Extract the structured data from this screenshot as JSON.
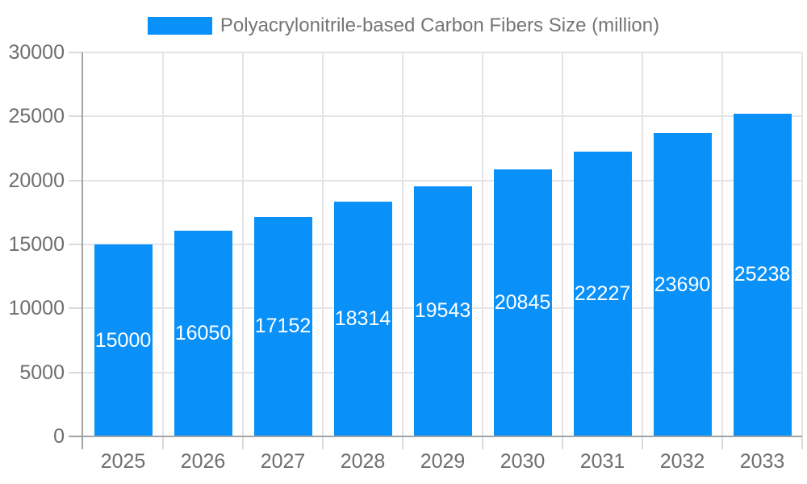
{
  "legend": {
    "label": "Polyacrylonitrile-based Carbon Fibers Size (million)"
  },
  "colors": {
    "background": "#ffffff",
    "bar": "#0990f9",
    "bar_label_text": "#ffffff",
    "axis_line": "#a3a3a3",
    "grid_line": "#e4e4e4",
    "tick_line": "#dadada",
    "tick_text": "#6e6e6e",
    "legend_text": "#757575"
  },
  "chart_data": {
    "type": "bar",
    "title": "",
    "xlabel": "",
    "ylabel": "",
    "categories": [
      "2025",
      "2026",
      "2027",
      "2028",
      "2029",
      "2030",
      "2031",
      "2032",
      "2033"
    ],
    "series": [
      {
        "name": "Polyacrylonitrile-based Carbon Fibers Size (million)",
        "values": [
          15000,
          16050,
          17152,
          18314,
          19543,
          20845,
          22227,
          23690,
          25238
        ]
      }
    ],
    "ylim": [
      0,
      30000
    ],
    "yticks": [
      0,
      5000,
      10000,
      15000,
      20000,
      25000,
      30000
    ],
    "grid": true,
    "legend_position": "top",
    "bar_value_labels": "inside-center"
  }
}
